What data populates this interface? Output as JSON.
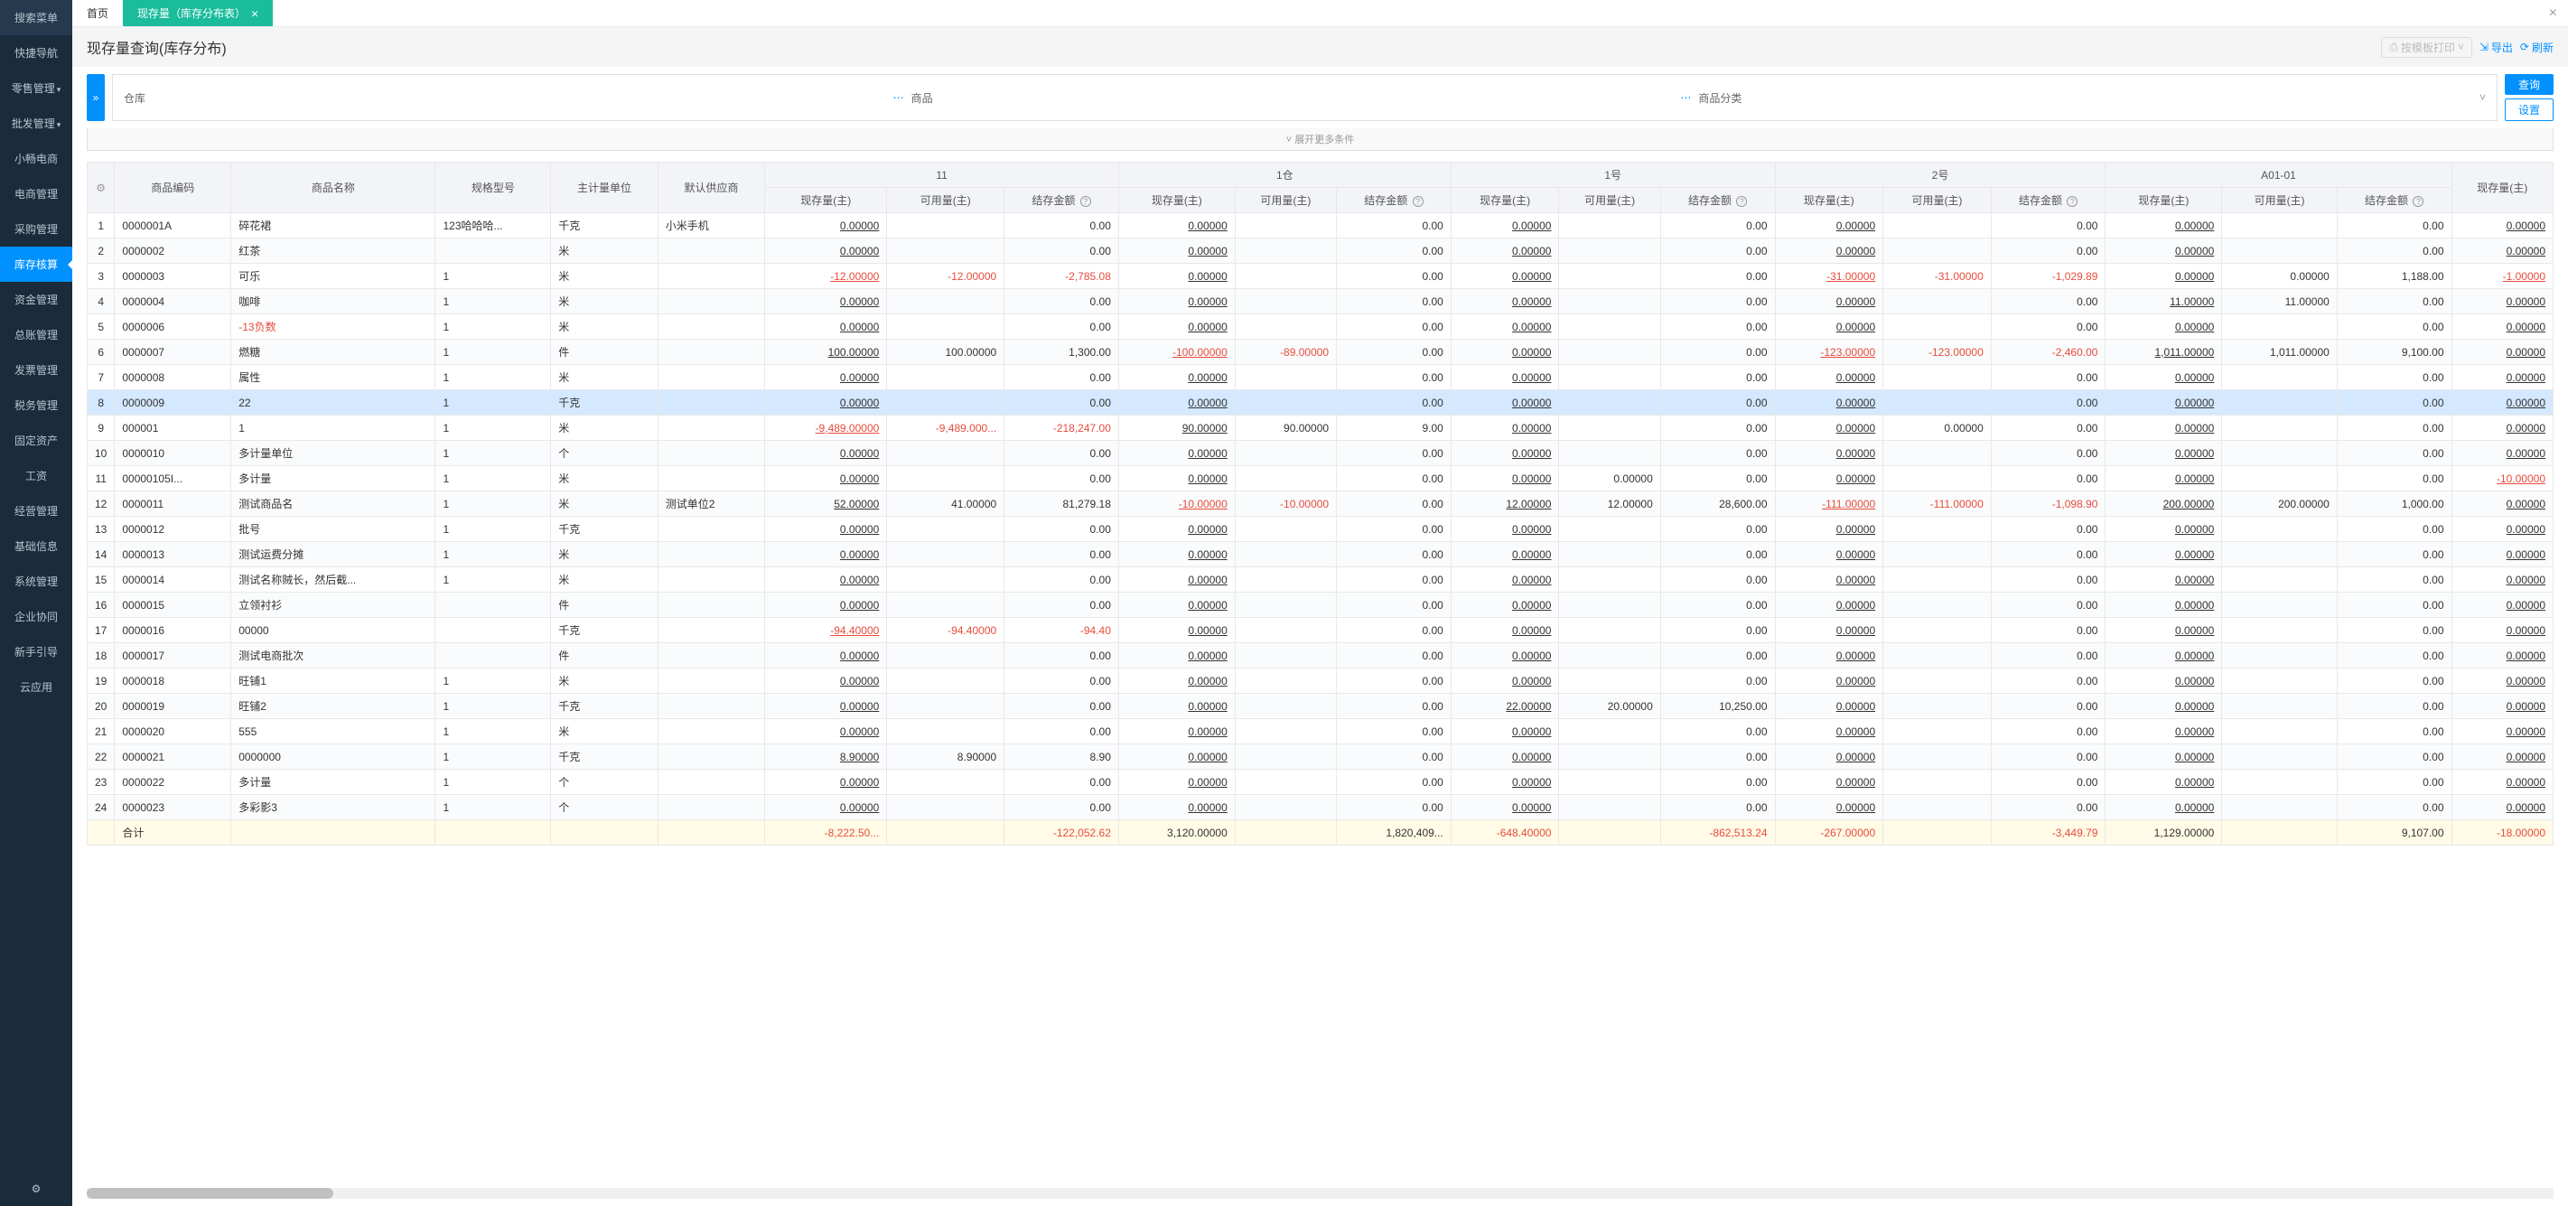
{
  "sidebar": {
    "items": [
      {
        "label": "搜索菜单",
        "hasCaret": false
      },
      {
        "label": "快捷导航",
        "hasCaret": false
      },
      {
        "label": "零售管理",
        "hasCaret": true
      },
      {
        "label": "批发管理",
        "hasCaret": true
      },
      {
        "label": "小畅电商",
        "hasCaret": false
      },
      {
        "label": "电商管理",
        "hasCaret": false
      },
      {
        "label": "采购管理",
        "hasCaret": false
      },
      {
        "label": "库存核算",
        "hasCaret": false,
        "active": true
      },
      {
        "label": "资金管理",
        "hasCaret": false
      },
      {
        "label": "总账管理",
        "hasCaret": false
      },
      {
        "label": "发票管理",
        "hasCaret": false
      },
      {
        "label": "税务管理",
        "hasCaret": false
      },
      {
        "label": "固定资产",
        "hasCaret": false
      },
      {
        "label": "工资",
        "hasCaret": false
      },
      {
        "label": "经营管理",
        "hasCaret": false
      },
      {
        "label": "基础信息",
        "hasCaret": false
      },
      {
        "label": "系统管理",
        "hasCaret": false
      },
      {
        "label": "企业协同",
        "hasCaret": false
      },
      {
        "label": "新手引导",
        "hasCaret": false
      },
      {
        "label": "云应用",
        "hasCaret": false
      }
    ],
    "gear": "⚙"
  },
  "tabs": {
    "home": "首页",
    "active": "现存量（库存分布表）"
  },
  "page": {
    "title": "现存量查询(库存分布)",
    "printTpl": "按模板打印",
    "export": "导出",
    "refresh": "刷新"
  },
  "filters": {
    "warehouse": "仓库",
    "product": "商品",
    "category": "商品分类",
    "query": "查询",
    "settings": "设置",
    "expand": "展开更多条件"
  },
  "table": {
    "warehouses": [
      "11",
      "1仓",
      "1号",
      "2号",
      "A01-01"
    ],
    "cols": {
      "idx": "",
      "code": "商品编码",
      "name": "商品名称",
      "spec": "规格型号",
      "unit": "主计量单位",
      "supplier": "默认供应商",
      "stock": "现存量(主)",
      "avail": "可用量(主)",
      "amount": "结存金额",
      "extraStock": "现存量(主)"
    },
    "rows": [
      {
        "i": 1,
        "code": "0000001A",
        "name": "碎花裙",
        "spec": "123哈哈哈...",
        "unit": "千克",
        "supplier": "小米手机",
        "w": [
          [
            "0.00000",
            "",
            "0.00"
          ],
          [
            "0.00000",
            "",
            "0.00"
          ],
          [
            "0.00000",
            "",
            "0.00"
          ],
          [
            "0.00000",
            "",
            "0.00"
          ],
          [
            "0.00000",
            "",
            "0.00"
          ]
        ],
        "extra": "0.00000"
      },
      {
        "i": 2,
        "code": "0000002",
        "name": "红茶",
        "spec": "",
        "unit": "米",
        "supplier": "",
        "w": [
          [
            "0.00000",
            "",
            "0.00"
          ],
          [
            "0.00000",
            "",
            "0.00"
          ],
          [
            "0.00000",
            "",
            "0.00"
          ],
          [
            "0.00000",
            "",
            "0.00"
          ],
          [
            "0.00000",
            "",
            "0.00"
          ]
        ],
        "extra": "0.00000"
      },
      {
        "i": 3,
        "code": "0000003",
        "name": "可乐",
        "spec": "1",
        "unit": "米",
        "supplier": "",
        "w": [
          [
            "-12.00000",
            "-12.00000",
            "-2,785.08"
          ],
          [
            "0.00000",
            "",
            "0.00"
          ],
          [
            "0.00000",
            "",
            "0.00"
          ],
          [
            "-31.00000",
            "-31.00000",
            "-1,029.89"
          ],
          [
            "0.00000",
            "0.00000",
            "1,188.00"
          ]
        ],
        "extra": "-1.00000"
      },
      {
        "i": 4,
        "code": "0000004",
        "name": "咖啡",
        "spec": "1",
        "unit": "米",
        "supplier": "",
        "w": [
          [
            "0.00000",
            "",
            "0.00"
          ],
          [
            "0.00000",
            "",
            "0.00"
          ],
          [
            "0.00000",
            "",
            "0.00"
          ],
          [
            "0.00000",
            "",
            "0.00"
          ],
          [
            "11.00000",
            "11.00000",
            "0.00"
          ]
        ],
        "extra": "0.00000"
      },
      {
        "i": 5,
        "code": "0000006",
        "name": "-13负数",
        "nameNeg": true,
        "spec": "1",
        "unit": "米",
        "supplier": "",
        "w": [
          [
            "0.00000",
            "",
            "0.00"
          ],
          [
            "0.00000",
            "",
            "0.00"
          ],
          [
            "0.00000",
            "",
            "0.00"
          ],
          [
            "0.00000",
            "",
            "0.00"
          ],
          [
            "0.00000",
            "",
            "0.00"
          ]
        ],
        "extra": "0.00000"
      },
      {
        "i": 6,
        "code": "0000007",
        "name": "燃糖",
        "spec": "1",
        "unit": "件",
        "supplier": "",
        "w": [
          [
            "100.00000",
            "100.00000",
            "1,300.00"
          ],
          [
            "-100.00000",
            "-89.00000",
            "0.00"
          ],
          [
            "0.00000",
            "",
            "0.00"
          ],
          [
            "-123.00000",
            "-123.00000",
            "-2,460.00"
          ],
          [
            "1,011.00000",
            "1,011.00000",
            "9,100.00"
          ]
        ],
        "extra": "0.00000"
      },
      {
        "i": 7,
        "code": "0000008",
        "name": "属性",
        "spec": "1",
        "unit": "米",
        "supplier": "",
        "w": [
          [
            "0.00000",
            "",
            "0.00"
          ],
          [
            "0.00000",
            "",
            "0.00"
          ],
          [
            "0.00000",
            "",
            "0.00"
          ],
          [
            "0.00000",
            "",
            "0.00"
          ],
          [
            "0.00000",
            "",
            "0.00"
          ]
        ],
        "extra": "0.00000"
      },
      {
        "i": 8,
        "code": "0000009",
        "name": "22",
        "spec": "1",
        "unit": "千克",
        "supplier": "",
        "selected": true,
        "w": [
          [
            "0.00000",
            "",
            "0.00"
          ],
          [
            "0.00000",
            "",
            "0.00"
          ],
          [
            "0.00000",
            "",
            "0.00"
          ],
          [
            "0.00000",
            "",
            "0.00"
          ],
          [
            "0.00000",
            "",
            "0.00"
          ]
        ],
        "extra": "0.00000"
      },
      {
        "i": 9,
        "code": "000001",
        "name": "1",
        "spec": "1",
        "unit": "米",
        "supplier": "",
        "w": [
          [
            "-9,489.00000",
            "-9,489.000...",
            "-218,247.00"
          ],
          [
            "90.00000",
            "90.00000",
            "9.00"
          ],
          [
            "0.00000",
            "",
            "0.00"
          ],
          [
            "0.00000",
            "0.00000",
            "0.00"
          ],
          [
            "0.00000",
            "",
            "0.00"
          ]
        ],
        "extra": "0.00000"
      },
      {
        "i": 10,
        "code": "0000010",
        "name": "多计量单位",
        "spec": "1",
        "unit": "个",
        "supplier": "",
        "w": [
          [
            "0.00000",
            "",
            "0.00"
          ],
          [
            "0.00000",
            "",
            "0.00"
          ],
          [
            "0.00000",
            "",
            "0.00"
          ],
          [
            "0.00000",
            "",
            "0.00"
          ],
          [
            "0.00000",
            "",
            "0.00"
          ]
        ],
        "extra": "0.00000"
      },
      {
        "i": 11,
        "code": "00000105I...",
        "name": "多计量",
        "spec": "1",
        "unit": "米",
        "supplier": "",
        "w": [
          [
            "0.00000",
            "",
            "0.00"
          ],
          [
            "0.00000",
            "",
            "0.00"
          ],
          [
            "0.00000",
            "0.00000",
            "0.00"
          ],
          [
            "0.00000",
            "",
            "0.00"
          ],
          [
            "0.00000",
            "",
            "0.00"
          ]
        ],
        "extra": "-10.00000"
      },
      {
        "i": 12,
        "code": "0000011",
        "name": "测试商品名",
        "spec": "1",
        "unit": "米",
        "supplier": "测试单位2",
        "w": [
          [
            "52.00000",
            "41.00000",
            "81,279.18"
          ],
          [
            "-10.00000",
            "-10.00000",
            "0.00"
          ],
          [
            "12.00000",
            "12.00000",
            "28,600.00"
          ],
          [
            "-111.00000",
            "-111.00000",
            "-1,098.90"
          ],
          [
            "200.00000",
            "200.00000",
            "1,000.00"
          ]
        ],
        "extra": "0.00000"
      },
      {
        "i": 13,
        "code": "0000012",
        "name": "批号",
        "spec": "1",
        "unit": "千克",
        "supplier": "",
        "w": [
          [
            "0.00000",
            "",
            "0.00"
          ],
          [
            "0.00000",
            "",
            "0.00"
          ],
          [
            "0.00000",
            "",
            "0.00"
          ],
          [
            "0.00000",
            "",
            "0.00"
          ],
          [
            "0.00000",
            "",
            "0.00"
          ]
        ],
        "extra": "0.00000"
      },
      {
        "i": 14,
        "code": "0000013",
        "name": "测试运费分摊",
        "spec": "1",
        "unit": "米",
        "supplier": "",
        "w": [
          [
            "0.00000",
            "",
            "0.00"
          ],
          [
            "0.00000",
            "",
            "0.00"
          ],
          [
            "0.00000",
            "",
            "0.00"
          ],
          [
            "0.00000",
            "",
            "0.00"
          ],
          [
            "0.00000",
            "",
            "0.00"
          ]
        ],
        "extra": "0.00000"
      },
      {
        "i": 15,
        "code": "0000014",
        "name": "测试名称贼长，然后截...",
        "spec": "1",
        "unit": "米",
        "supplier": "",
        "w": [
          [
            "0.00000",
            "",
            "0.00"
          ],
          [
            "0.00000",
            "",
            "0.00"
          ],
          [
            "0.00000",
            "",
            "0.00"
          ],
          [
            "0.00000",
            "",
            "0.00"
          ],
          [
            "0.00000",
            "",
            "0.00"
          ]
        ],
        "extra": "0.00000"
      },
      {
        "i": 16,
        "code": "0000015",
        "name": "立领衬衫",
        "spec": "",
        "unit": "件",
        "supplier": "",
        "w": [
          [
            "0.00000",
            "",
            "0.00"
          ],
          [
            "0.00000",
            "",
            "0.00"
          ],
          [
            "0.00000",
            "",
            "0.00"
          ],
          [
            "0.00000",
            "",
            "0.00"
          ],
          [
            "0.00000",
            "",
            "0.00"
          ]
        ],
        "extra": "0.00000"
      },
      {
        "i": 17,
        "code": "0000016",
        "name": "00000",
        "spec": "",
        "unit": "千克",
        "supplier": "",
        "w": [
          [
            "-94.40000",
            "-94.40000",
            "-94.40"
          ],
          [
            "0.00000",
            "",
            "0.00"
          ],
          [
            "0.00000",
            "",
            "0.00"
          ],
          [
            "0.00000",
            "",
            "0.00"
          ],
          [
            "0.00000",
            "",
            "0.00"
          ]
        ],
        "extra": "0.00000"
      },
      {
        "i": 18,
        "code": "0000017",
        "name": "测试电商批次",
        "spec": "",
        "unit": "件",
        "supplier": "",
        "w": [
          [
            "0.00000",
            "",
            "0.00"
          ],
          [
            "0.00000",
            "",
            "0.00"
          ],
          [
            "0.00000",
            "",
            "0.00"
          ],
          [
            "0.00000",
            "",
            "0.00"
          ],
          [
            "0.00000",
            "",
            "0.00"
          ]
        ],
        "extra": "0.00000"
      },
      {
        "i": 19,
        "code": "0000018",
        "name": "旺铺1",
        "spec": "1",
        "unit": "米",
        "supplier": "",
        "w": [
          [
            "0.00000",
            "",
            "0.00"
          ],
          [
            "0.00000",
            "",
            "0.00"
          ],
          [
            "0.00000",
            "",
            "0.00"
          ],
          [
            "0.00000",
            "",
            "0.00"
          ],
          [
            "0.00000",
            "",
            "0.00"
          ]
        ],
        "extra": "0.00000"
      },
      {
        "i": 20,
        "code": "0000019",
        "name": "旺铺2",
        "spec": "1",
        "unit": "千克",
        "supplier": "",
        "w": [
          [
            "0.00000",
            "",
            "0.00"
          ],
          [
            "0.00000",
            "",
            "0.00"
          ],
          [
            "22.00000",
            "20.00000",
            "10,250.00"
          ],
          [
            "0.00000",
            "",
            "0.00"
          ],
          [
            "0.00000",
            "",
            "0.00"
          ]
        ],
        "extra": "0.00000"
      },
      {
        "i": 21,
        "code": "0000020",
        "name": "555",
        "spec": "1",
        "unit": "米",
        "supplier": "",
        "w": [
          [
            "0.00000",
            "",
            "0.00"
          ],
          [
            "0.00000",
            "",
            "0.00"
          ],
          [
            "0.00000",
            "",
            "0.00"
          ],
          [
            "0.00000",
            "",
            "0.00"
          ],
          [
            "0.00000",
            "",
            "0.00"
          ]
        ],
        "extra": "0.00000"
      },
      {
        "i": 22,
        "code": "0000021",
        "name": "0000000",
        "spec": "1",
        "unit": "千克",
        "supplier": "",
        "w": [
          [
            "8.90000",
            "8.90000",
            "8.90"
          ],
          [
            "0.00000",
            "",
            "0.00"
          ],
          [
            "0.00000",
            "",
            "0.00"
          ],
          [
            "0.00000",
            "",
            "0.00"
          ],
          [
            "0.00000",
            "",
            "0.00"
          ]
        ],
        "extra": "0.00000"
      },
      {
        "i": 23,
        "code": "0000022",
        "name": "多计量",
        "spec": "1",
        "unit": "个",
        "supplier": "",
        "w": [
          [
            "0.00000",
            "",
            "0.00"
          ],
          [
            "0.00000",
            "",
            "0.00"
          ],
          [
            "0.00000",
            "",
            "0.00"
          ],
          [
            "0.00000",
            "",
            "0.00"
          ],
          [
            "0.00000",
            "",
            "0.00"
          ]
        ],
        "extra": "0.00000"
      },
      {
        "i": 24,
        "code": "0000023",
        "name": "多彩影3",
        "spec": "1",
        "unit": "个",
        "supplier": "",
        "w": [
          [
            "0.00000",
            "",
            "0.00"
          ],
          [
            "0.00000",
            "",
            "0.00"
          ],
          [
            "0.00000",
            "",
            "0.00"
          ],
          [
            "0.00000",
            "",
            "0.00"
          ],
          [
            "0.00000",
            "",
            "0.00"
          ]
        ],
        "extra": "0.00000"
      }
    ],
    "total": {
      "label": "合计",
      "w": [
        [
          "-8,222.50...",
          "",
          "-122,052.62"
        ],
        [
          "3,120.00000",
          "",
          "1,820,409..."
        ],
        [
          "-648.40000",
          "",
          "-862,513.24"
        ],
        [
          "-267.00000",
          "",
          "-3,449.79"
        ],
        [
          "1,129.00000",
          "",
          "9,107.00"
        ]
      ],
      "extra": "-18.00000"
    }
  }
}
